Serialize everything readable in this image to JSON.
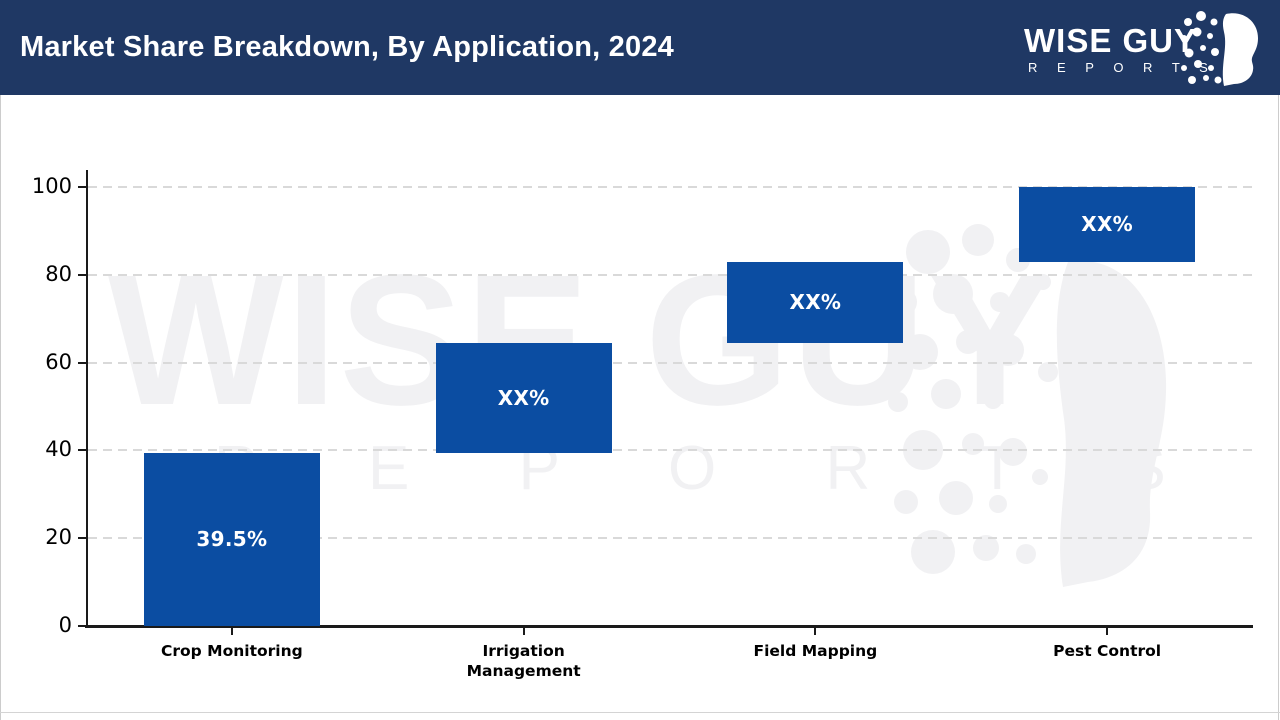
{
  "header": {
    "title": "Market Share Breakdown, By Application, 2024"
  },
  "brand": {
    "name": "WISE GUY",
    "subtitle": "R E P O R T S"
  },
  "watermark": {
    "line1": "WISE GUY",
    "line2": "R E P O R T S"
  },
  "colors": {
    "header_bg": "#1F3864",
    "bar_fill": "#0B4DA2",
    "bar_label": "#FFFFFF",
    "gridline": "#D9D9D9",
    "axis": "#1A1A1A",
    "watermark": "#F1F1F3"
  },
  "chart_data": {
    "type": "bar",
    "subtype": "waterfall",
    "title": "Market Share Breakdown, By Application, 2024",
    "categories": [
      "Crop Monitoring",
      "Irrigation Management",
      "Field Mapping",
      "Pest Control"
    ],
    "segments": [
      {
        "category": "Crop Monitoring",
        "start": 0,
        "end": 39.5,
        "label": "39.5%"
      },
      {
        "category": "Irrigation Management",
        "start": 39.5,
        "end": 64.5,
        "label": "XX%"
      },
      {
        "category": "Field Mapping",
        "start": 64.5,
        "end": 83,
        "label": "XX%"
      },
      {
        "category": "Pest Control",
        "start": 83,
        "end": 100,
        "label": "XX%"
      }
    ],
    "values_shown": [
      "39.5%",
      "XX%",
      "XX%",
      "XX%"
    ],
    "xlabel": "",
    "ylabel": "",
    "ylim": [
      0,
      100
    ],
    "yticks": [
      0,
      20,
      40,
      60,
      80,
      100
    ],
    "grid": "horizontal dashed",
    "legend": "none"
  }
}
